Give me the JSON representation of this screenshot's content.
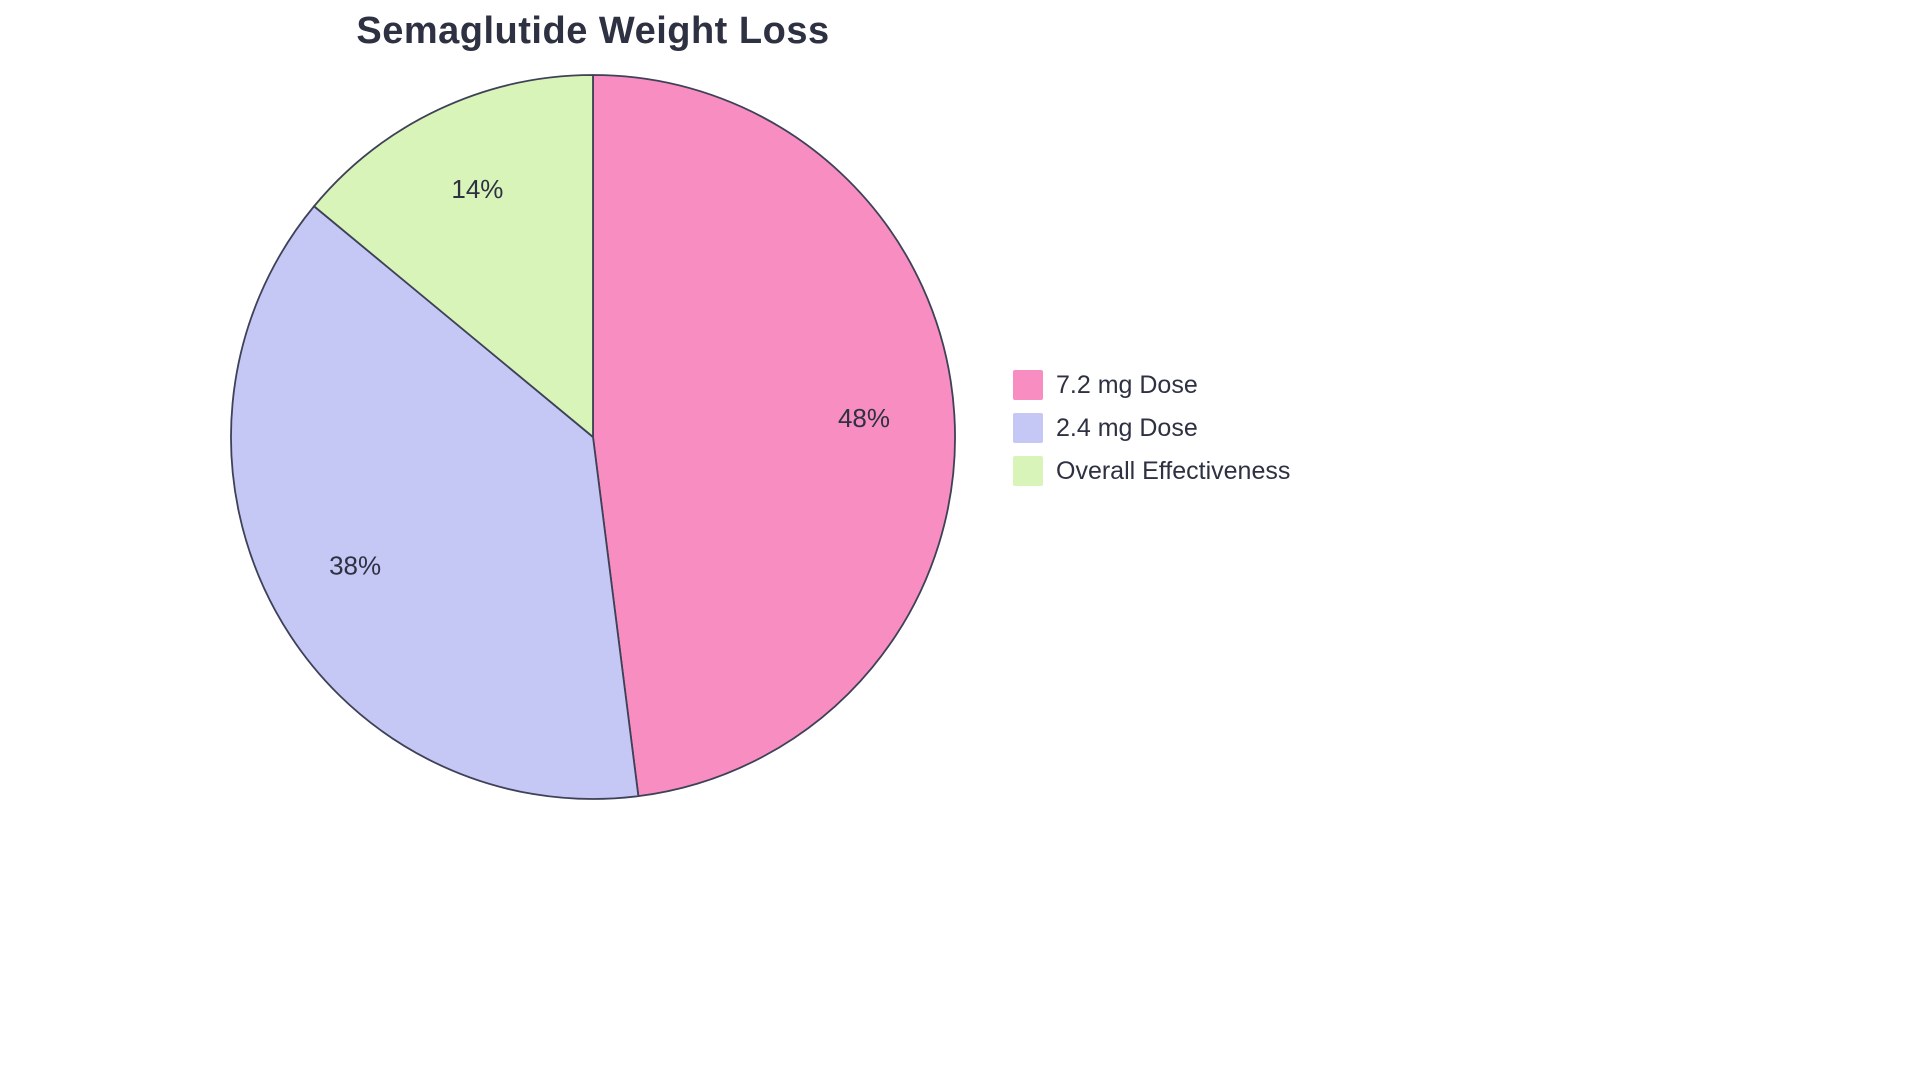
{
  "chart_data": {
    "type": "pie",
    "title": "Semaglutide Weight Loss",
    "slices": [
      {
        "label": "7.2 mg Dose",
        "value": 48,
        "percent_label": "48%",
        "color": "#F88DC1"
      },
      {
        "label": "2.4 mg Dose",
        "value": 38,
        "percent_label": "38%",
        "color": "#C5C8F5"
      },
      {
        "label": "Overall Effectiveness",
        "value": 14,
        "percent_label": "14%",
        "color": "#D9F4B8"
      }
    ],
    "start_angle_deg": 0,
    "direction": "clockwise",
    "stroke_color": "#3E4157",
    "legend_position": "right",
    "background": "#FFFFFF"
  }
}
